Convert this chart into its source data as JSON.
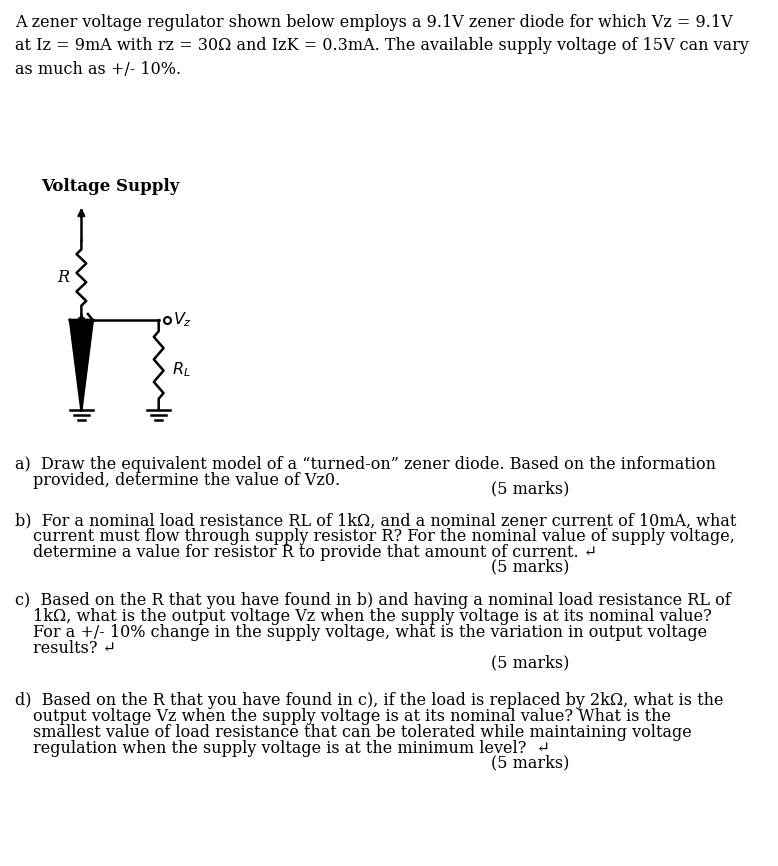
{
  "bg_color": "#ffffff",
  "text_color": "#000000",
  "red_color": "#cc0000",
  "title_paragraph": "A zener voltage regulator shown below employs a 9.1V zener diode for which Vz = 9.1V\nat Iz = 9mA with rz = 30Ω and IzK = 0.3mA. The available supply voltage of 15V can vary\nas much as +/- 10%.",
  "voltage_supply_label": "Voltage Supply",
  "questions": [
    {
      "label": "a)",
      "text": " Draw the equivalent model of a “turned-on” zener diode. Based on the information\n     provided, determine the value of Vz0.",
      "marks": "(5 marks)"
    },
    {
      "label": "b)",
      "text": " For a nominal load resistance RL of 1kΩ, and a nominal zener current of 10mA, what\n     current must flow through supply resistor R? For the nominal value of supply voltage,\n     determine a value for resistor R to provide that amount of current. ",
      "marks": "(5 marks)"
    },
    {
      "label": "c)",
      "text": " Based on the R that you have found in b) and having a nominal load resistance RL of\n     1kΩ, what is the output voltage Vz when the supply voltage is at its nominal value?\n     For a +/- 10% change in the supply voltage, what is the variation in output voltage\n     results? ",
      "marks": "(5 marks)"
    },
    {
      "label": "d)",
      "text": " Based on the R that you have found in c), if the load is replaced by 2kΩ, what is the\n     output voltage Vz when the supply voltage is at its nominal value? What is the\n     smallest value of load resistance that can be tolerated while maintaining voltage\n     regulation when the supply voltage is at the minimum level? ",
      "marks": "(5 marks)"
    }
  ],
  "font_size_main": 11.5,
  "font_size_label": 11.5,
  "font_family": "serif"
}
